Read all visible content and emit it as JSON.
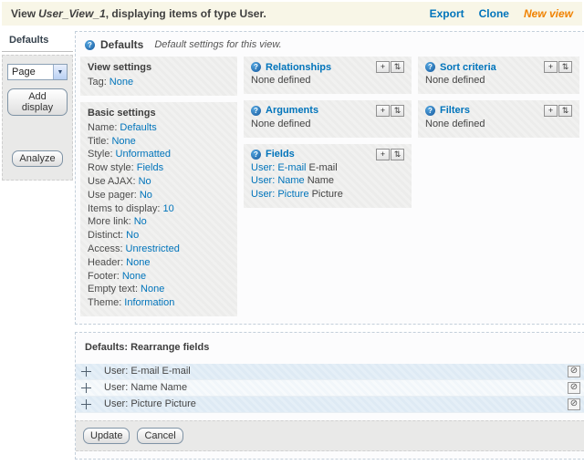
{
  "colors": {
    "link_blue": "#0074bb",
    "accent_orange": "#f08200",
    "topbar_bg": "#f8f6e7"
  },
  "icons": {
    "help": "?",
    "add": "+",
    "rearrange": "⇅",
    "select_arrow": "▼",
    "remove": "⊘"
  },
  "header": {
    "prefix": "View",
    "view_name": "User_View_1",
    "suffix": ", displaying items of type User.",
    "links": [
      {
        "label": "Export"
      },
      {
        "label": "Clone"
      },
      {
        "label": "New view"
      }
    ]
  },
  "sidebar": {
    "tab": "Defaults",
    "display_select": {
      "value": "Page"
    },
    "add_display_label": "Add display",
    "analyze_label": "Analyze"
  },
  "main": {
    "title": "Defaults",
    "subtitle": "Default settings for this view.",
    "view_settings": {
      "title": "View settings",
      "rows": [
        {
          "label": "Tag:",
          "value": "None"
        }
      ]
    },
    "basic_settings": {
      "title": "Basic settings",
      "rows": [
        {
          "label": "Name:",
          "value": "Defaults"
        },
        {
          "label": "Title:",
          "value": "None"
        },
        {
          "label": "Style:",
          "value": "Unformatted"
        },
        {
          "label": "Row style:",
          "value": "Fields"
        },
        {
          "label": "Use AJAX:",
          "value": "No"
        },
        {
          "label": "Use pager:",
          "value": "No"
        },
        {
          "label": "Items to display:",
          "value": "10"
        },
        {
          "label": "More link:",
          "value": "No"
        },
        {
          "label": "Distinct:",
          "value": "No"
        },
        {
          "label": "Access:",
          "value": "Unrestricted"
        },
        {
          "label": "Header:",
          "value": "None"
        },
        {
          "label": "Footer:",
          "value": "None"
        },
        {
          "label": "Empty text:",
          "value": "None"
        },
        {
          "label": "Theme:",
          "value": "Information"
        }
      ]
    },
    "relationships": {
      "title": "Relationships",
      "empty": "None defined"
    },
    "arguments": {
      "title": "Arguments",
      "empty": "None defined"
    },
    "fields": {
      "title": "Fields",
      "items": [
        {
          "link": "User: E-mail",
          "suffix": "E-mail"
        },
        {
          "link": "User: Name",
          "suffix": "Name"
        },
        {
          "link": "User: Picture",
          "suffix": "Picture"
        }
      ]
    },
    "sort_criteria": {
      "title": "Sort criteria",
      "empty": "None defined"
    },
    "filters": {
      "title": "Filters",
      "empty": "None defined"
    }
  },
  "rearrange": {
    "title": "Defaults: Rearrange fields",
    "rows": [
      {
        "label": "User: E-mail E-mail"
      },
      {
        "label": "User: Name Name"
      },
      {
        "label": "User: Picture Picture"
      }
    ],
    "update_label": "Update",
    "cancel_label": "Cancel"
  }
}
